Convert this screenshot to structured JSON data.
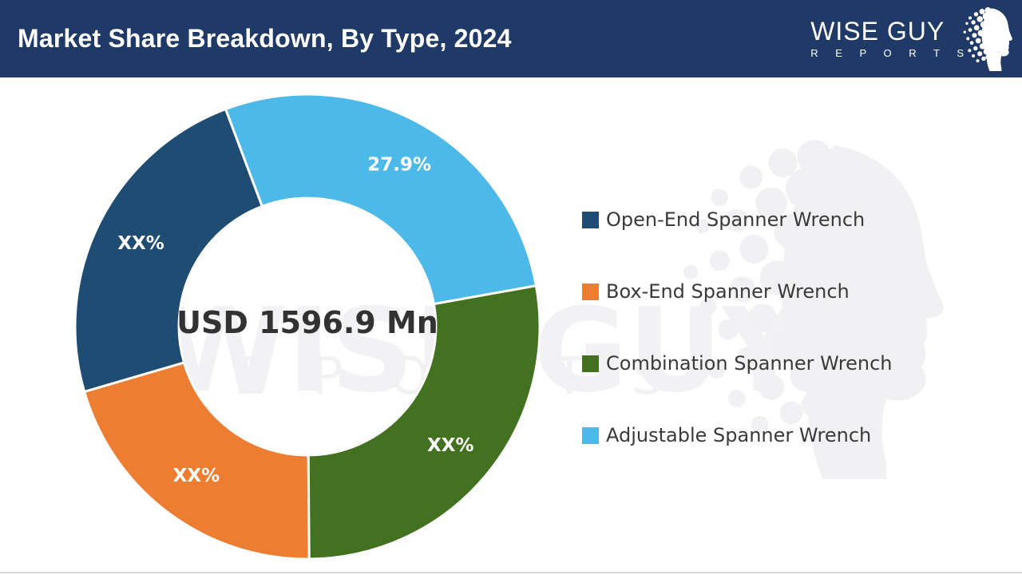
{
  "header": {
    "title": "Market Share Breakdown, By Type, 2024",
    "bg_color": "#203a68",
    "logo": {
      "line1": "WISE GUY",
      "line2": "R E P O R T S"
    }
  },
  "watermark": {
    "line1": "WISE GUY",
    "line2": "REPORTS"
  },
  "chart_data": {
    "type": "pie",
    "subtype": "donut",
    "title": "Market Share Breakdown, By Type, 2024",
    "center_label": "USD 1596.9 Mn",
    "legend_position": "right",
    "start_angle_deg_from_north": -20.6,
    "direction": "counterclockwise",
    "inner_radius_ratio": 0.553,
    "separator_color": "#ffffff",
    "label_color": "#ffffff",
    "segments": [
      {
        "label": "Open-End Spanner Wrench",
        "color": "#1f4c73",
        "pct": 23.8,
        "display": "XX%"
      },
      {
        "label": "Box-End Spanner Wrench",
        "color": "#ed7d31",
        "pct": 20.6,
        "display": "XX%"
      },
      {
        "label": "Combination Spanner Wrench",
        "color": "#42711f",
        "pct": 27.7,
        "display": "XX%"
      },
      {
        "label": "Adjustable Spanner Wrench",
        "color": "#4db9e8",
        "pct": 27.9,
        "display": "27.9%"
      }
    ]
  }
}
